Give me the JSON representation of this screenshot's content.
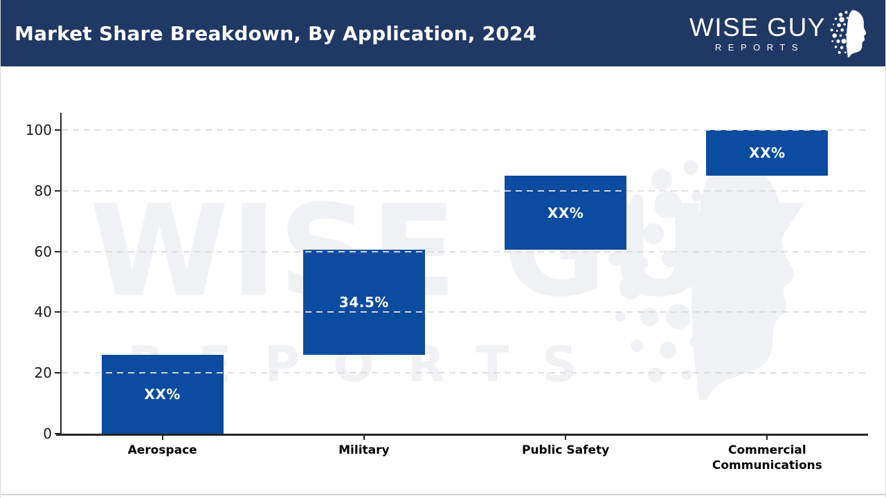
{
  "header": {
    "title": "Market Share Breakdown, By Application, 2024",
    "logo": {
      "line1": "WISE GUY",
      "line2": "REPORTS",
      "icon": "face-profile-dots-icon"
    }
  },
  "watermark": {
    "line1": "WISE GUY",
    "line2": "REPORTS",
    "icon": "face-profile-dots-icon"
  },
  "colors": {
    "header_bg": "#1F3864",
    "bar": "#0B4BA0",
    "bar_label": "#FFFFFF",
    "watermark": "#F0F1F4",
    "grid": "#DCDCDC",
    "axis": "#262626",
    "tick_label": "#1A1A1A",
    "category_label": "#000000"
  },
  "chart_data": {
    "type": "bar",
    "subtype": "floating-segment-waterfall",
    "title": "Market Share Breakdown, By Application, 2024",
    "categories": [
      "Aerospace",
      "Military",
      "Public Safety",
      "Commercial Communications"
    ],
    "segments": [
      {
        "category": "Aerospace",
        "start": 0,
        "end": 26,
        "label": "XX%"
      },
      {
        "category": "Military",
        "start": 26,
        "end": 60.5,
        "label": "34.5%"
      },
      {
        "category": "Public Safety",
        "start": 60.5,
        "end": 85,
        "label": "XX%"
      },
      {
        "category": "Commercial Communications",
        "start": 85,
        "end": 100,
        "label": "XX%"
      }
    ],
    "yticks": [
      0,
      20,
      40,
      60,
      80,
      100
    ],
    "ylim": [
      0,
      105.7
    ],
    "xlabel": "",
    "ylabel": "",
    "grid": "horizontal-dashed",
    "legend": "none",
    "bar_color": "#0B4BA0",
    "label_color": "#FFFFFF"
  }
}
